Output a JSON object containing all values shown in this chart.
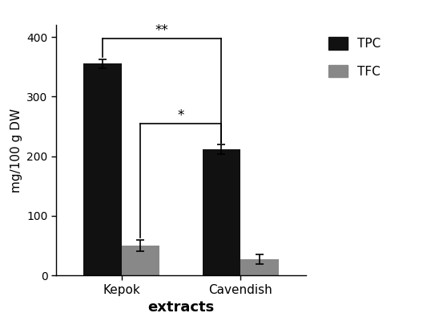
{
  "groups": [
    "Kepok",
    "Cavendish"
  ],
  "tpc_values": [
    355,
    212
  ],
  "tfc_values": [
    50,
    27
  ],
  "tpc_errors": [
    8,
    8
  ],
  "tfc_errors": [
    10,
    8
  ],
  "tpc_color": "#111111",
  "tfc_color": "#888888",
  "ylabel": "mg/100 g DW",
  "xlabel": "extracts",
  "ylim": [
    0,
    420
  ],
  "yticks": [
    0,
    100,
    200,
    300,
    400
  ],
  "bar_width": 0.32,
  "legend_labels": [
    "TPC",
    "TFC"
  ],
  "background_color": "#ffffff",
  "figsize": [
    5.38,
    3.9
  ],
  "dpi": 100
}
